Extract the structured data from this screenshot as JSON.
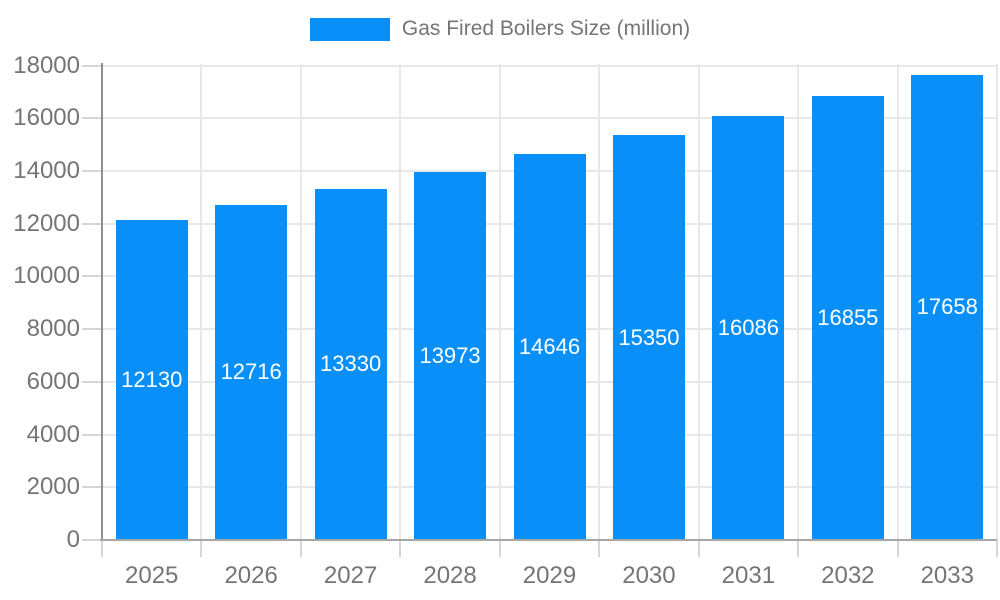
{
  "chart_data": {
    "type": "bar",
    "title": "Gas Fired Boilers Size (million)",
    "categories": [
      "2025",
      "2026",
      "2027",
      "2028",
      "2029",
      "2030",
      "2031",
      "2032",
      "2033"
    ],
    "values": [
      12130,
      12716,
      13330,
      13973,
      14646,
      15350,
      16086,
      16855,
      17658
    ],
    "xlabel": "",
    "ylabel": "",
    "ylim": [
      0,
      18000
    ],
    "ytick_step": 2000,
    "grid": true,
    "legend_position": "top",
    "value_labels": "inside-center-white",
    "colors": {
      "bar": "#0890F8",
      "value_label": "#FFFFFF",
      "axis_label": "#757575",
      "legend_label": "#757575",
      "gridline": "#E8E8E8",
      "axis_line": "#A6A6A6",
      "tick": "#D6D6D6"
    }
  }
}
